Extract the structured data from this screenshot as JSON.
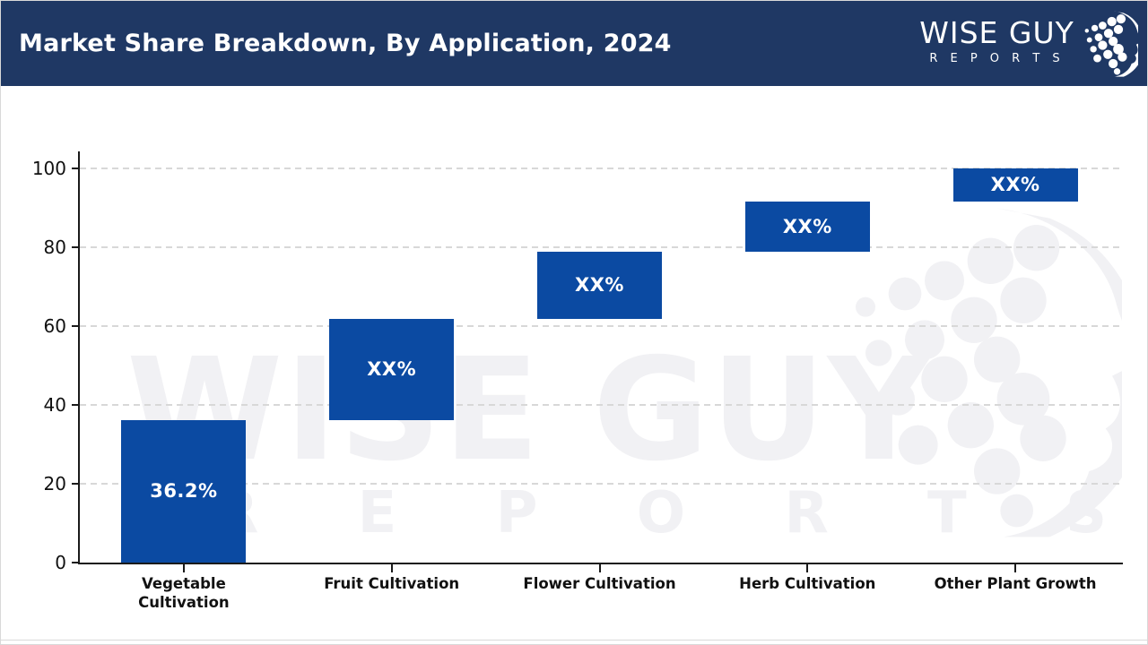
{
  "header": {
    "title": "Market Share Breakdown, By Application, 2024",
    "logo": {
      "name": "WISE GUY",
      "tagline": "R E P O R T S"
    }
  },
  "watermark": {
    "name": "WISE GUY",
    "tagline": "R E P O R T S"
  },
  "chart_data": {
    "type": "bar",
    "subtype": "waterfall",
    "title": "Market Share Breakdown, By Application, 2024",
    "xlabel": "",
    "ylabel": "",
    "ylim": [
      0,
      100
    ],
    "yticks": [
      0,
      20,
      40,
      60,
      80,
      100
    ],
    "grid": true,
    "legend": false,
    "categories": [
      "Vegetable Cultivation",
      "Fruit Cultivation",
      "Flower Cultivation",
      "Herb Cultivation",
      "Other Plant Growth"
    ],
    "category_lines": [
      [
        "Vegetable",
        "Cultivation"
      ],
      [
        "Fruit Cultivation"
      ],
      [
        "Flower Cultivation"
      ],
      [
        "Herb Cultivation"
      ],
      [
        "Other Plant Growth"
      ]
    ],
    "segments": [
      {
        "category": "Vegetable Cultivation",
        "start": 0,
        "end": 36.2,
        "value": 36.2,
        "bar_label": "36.2%"
      },
      {
        "category": "Fruit Cultivation",
        "start": 36.2,
        "end": 61.8,
        "value": 25.6,
        "bar_label": "XX%"
      },
      {
        "category": "Flower Cultivation",
        "start": 61.8,
        "end": 78.9,
        "value": 17.1,
        "bar_label": "XX%"
      },
      {
        "category": "Herb Cultivation",
        "start": 78.9,
        "end": 91.6,
        "value": 12.7,
        "bar_label": "XX%"
      },
      {
        "category": "Other Plant Growth",
        "start": 91.6,
        "end": 100,
        "value": 8.4,
        "bar_label": "XX%"
      }
    ],
    "bar_color": "#0b4aa2",
    "bar_label_color": "#ffffff"
  },
  "colors": {
    "header_bg": "#1f3864",
    "axis": "#1a1a1a",
    "grid": "#d8d8d8",
    "watermark": "#f1f1f4",
    "frame": "#d9d9d9"
  }
}
